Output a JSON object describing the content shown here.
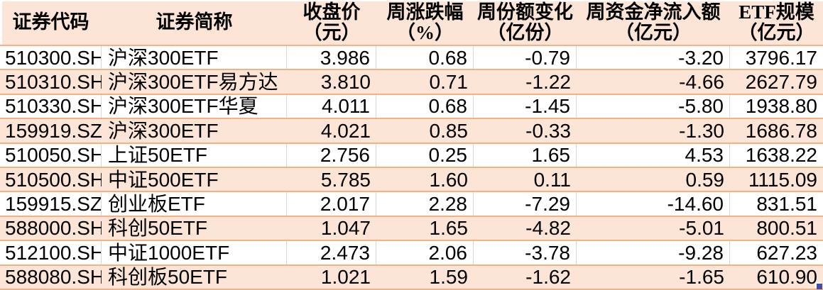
{
  "table": {
    "title_hint": "ETF weekly fund-flow table",
    "columns": [
      {
        "id": "code",
        "label_line1": "证券代码",
        "label_line2": ""
      },
      {
        "id": "name",
        "label_line1": "证券简称",
        "label_line2": ""
      },
      {
        "id": "close_price",
        "label_line1": "收盘价",
        "label_line2": "（元）"
      },
      {
        "id": "week_change_pct",
        "label_line1": "周涨跌幅",
        "label_line2": "（%）"
      },
      {
        "id": "share_change",
        "label_line1": "周份额变化",
        "label_line2": "（亿份）"
      },
      {
        "id": "net_inflow",
        "label_line1": "周资金净流入额",
        "label_line2": "（亿元）"
      },
      {
        "id": "etf_scale",
        "label_line1": "ETF规模",
        "label_line2": "（亿元）"
      }
    ],
    "rows": [
      {
        "code": "510300.SH",
        "name": "沪深300ETF",
        "close_price": "3.986",
        "week_change_pct": "0.68",
        "share_change": "-0.79",
        "net_inflow": "-3.20",
        "etf_scale": "3796.17"
      },
      {
        "code": "510310.SH",
        "name": "沪深300ETF易方达",
        "close_price": "3.810",
        "week_change_pct": "0.71",
        "share_change": "-1.22",
        "net_inflow": "-4.66",
        "etf_scale": "2627.79"
      },
      {
        "code": "510330.SH",
        "name": "沪深300ETF华夏",
        "close_price": "4.011",
        "week_change_pct": "0.68",
        "share_change": "-1.45",
        "net_inflow": "-5.80",
        "etf_scale": "1938.80"
      },
      {
        "code": "159919.SZ",
        "name": "沪深300ETF",
        "close_price": "4.021",
        "week_change_pct": "0.85",
        "share_change": "-0.33",
        "net_inflow": "-1.30",
        "etf_scale": "1686.78"
      },
      {
        "code": "510050.SH",
        "name": "上证50ETF",
        "close_price": "2.756",
        "week_change_pct": "0.25",
        "share_change": "1.65",
        "net_inflow": "4.53",
        "etf_scale": "1638.22"
      },
      {
        "code": "510500.SH",
        "name": "中证500ETF",
        "close_price": "5.785",
        "week_change_pct": "1.60",
        "share_change": "0.11",
        "net_inflow": "0.59",
        "etf_scale": "1115.09"
      },
      {
        "code": "159915.SZ",
        "name": "创业板ETF",
        "close_price": "2.017",
        "week_change_pct": "2.28",
        "share_change": "-7.29",
        "net_inflow": "-14.60",
        "etf_scale": "831.51"
      },
      {
        "code": "588000.SH",
        "name": "科创50ETF",
        "close_price": "1.047",
        "week_change_pct": "1.65",
        "share_change": "-4.82",
        "net_inflow": "-5.01",
        "etf_scale": "800.51"
      },
      {
        "code": "512100.SH",
        "name": "中证1000ETF",
        "close_price": "2.473",
        "week_change_pct": "2.06",
        "share_change": "-3.78",
        "net_inflow": "-9.28",
        "etf_scale": "627.23"
      },
      {
        "code": "588080.SH",
        "name": "科创板50ETF",
        "close_price": "1.021",
        "week_change_pct": "1.59",
        "share_change": "-1.62",
        "net_inflow": "-1.65",
        "etf_scale": "610.90"
      }
    ]
  },
  "colors": {
    "header_bg": "#FCE4D6",
    "row_bg": "#FFFFFF",
    "row_alt_bg": "#FCE4D6",
    "h_border": "#F4B183",
    "v_border": "#D9D9D9",
    "text": "#000000",
    "fill_handle": "#3F51A5"
  }
}
